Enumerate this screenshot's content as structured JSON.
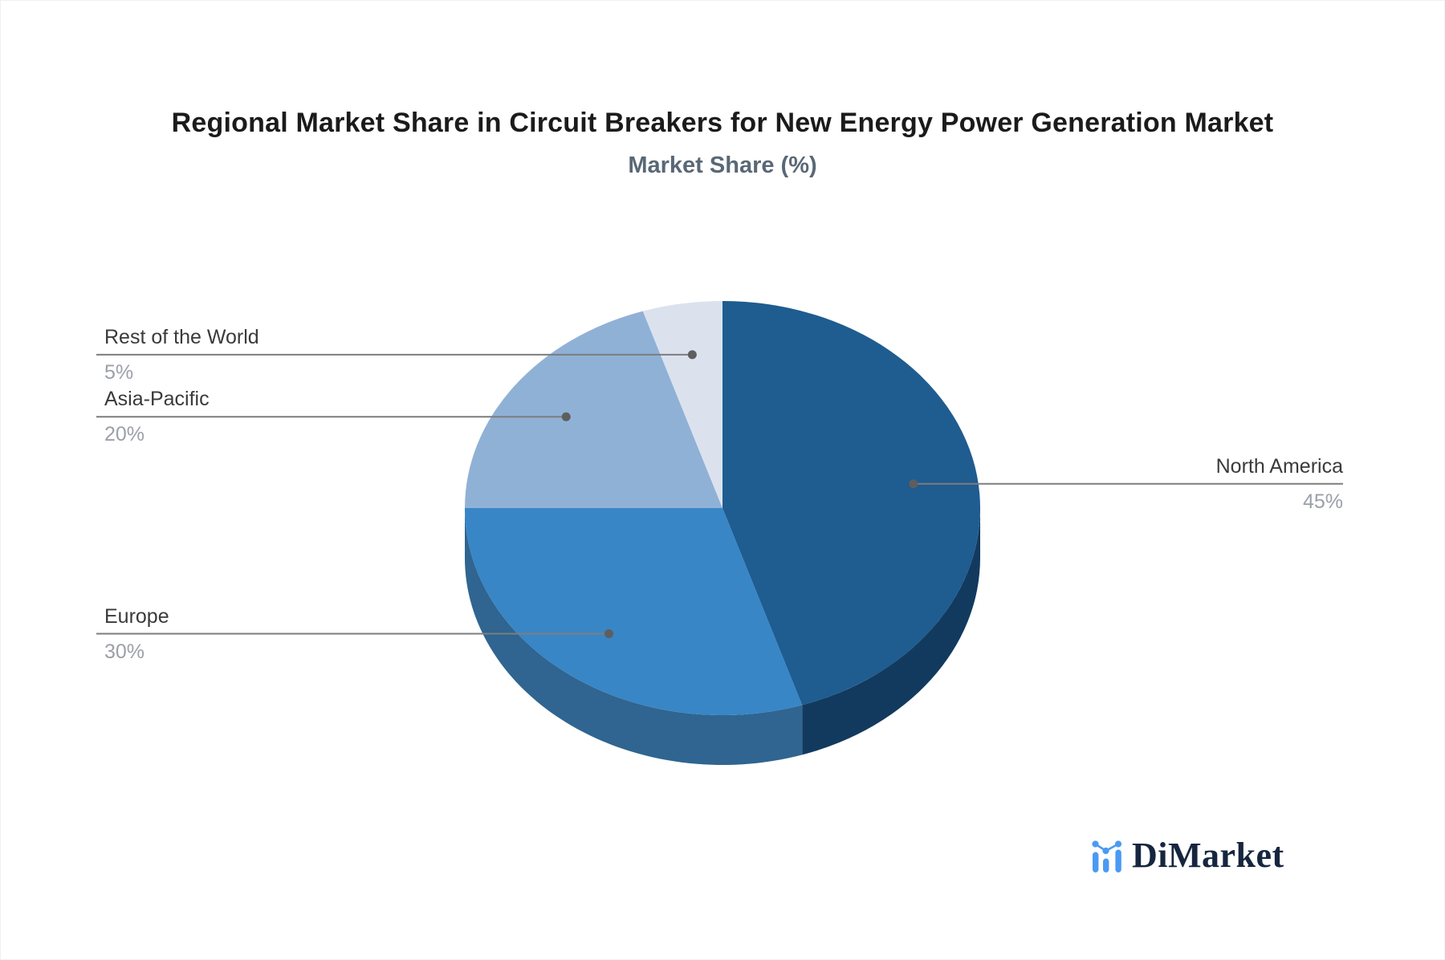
{
  "title": "Regional Market Share in Circuit Breakers for New Energy Power Generation Market",
  "subtitle": "Market Share (%)",
  "chart_data": {
    "type": "pie",
    "title": "Regional Market Share in Circuit Breakers for New Energy Power Generation Market",
    "subtitle": "Market Share (%)",
    "unit": "%",
    "effect": "3d",
    "direction": "clockwise",
    "start_angle_deg": 0,
    "legend_position": "none",
    "labels": [
      "North America",
      "Europe",
      "Asia-Pacific",
      "Rest of the World"
    ],
    "values": [
      45,
      30,
      20,
      5
    ],
    "slices": [
      {
        "label": "North America",
        "value": 45,
        "value_text": "45%",
        "color": "#1F5C90",
        "side_color": "#123A5F",
        "label_side": "right"
      },
      {
        "label": "Europe",
        "value": 30,
        "value_text": "30%",
        "color": "#3886C6",
        "side_color": "#2F6590",
        "label_side": "left"
      },
      {
        "label": "Asia-Pacific",
        "value": 20,
        "value_text": "20%",
        "color": "#90B1D6",
        "side_color": "#7495B8",
        "label_side": "left"
      },
      {
        "label": "Rest of the World",
        "value": 5,
        "value_text": "5%",
        "color": "#DBE2EE",
        "side_color": "#B6C3D6",
        "label_side": "left"
      }
    ]
  },
  "colors": {
    "background": "#FFFFFF",
    "canvas_border": "#EEF1F5",
    "title_text": "#1B1B1B",
    "subtitle_text": "#5A6876",
    "label_text": "#3A3A3A",
    "value_text": "#9BA0A8",
    "leader_line": "#7D7D7D",
    "leader_dot": "#5E5E5E",
    "logo_blue": "#4A9AF3",
    "logo_navy": "#16263F"
  },
  "watermark": {
    "text": "DiMarket",
    "icon": "bar-chart-logo-icon"
  }
}
